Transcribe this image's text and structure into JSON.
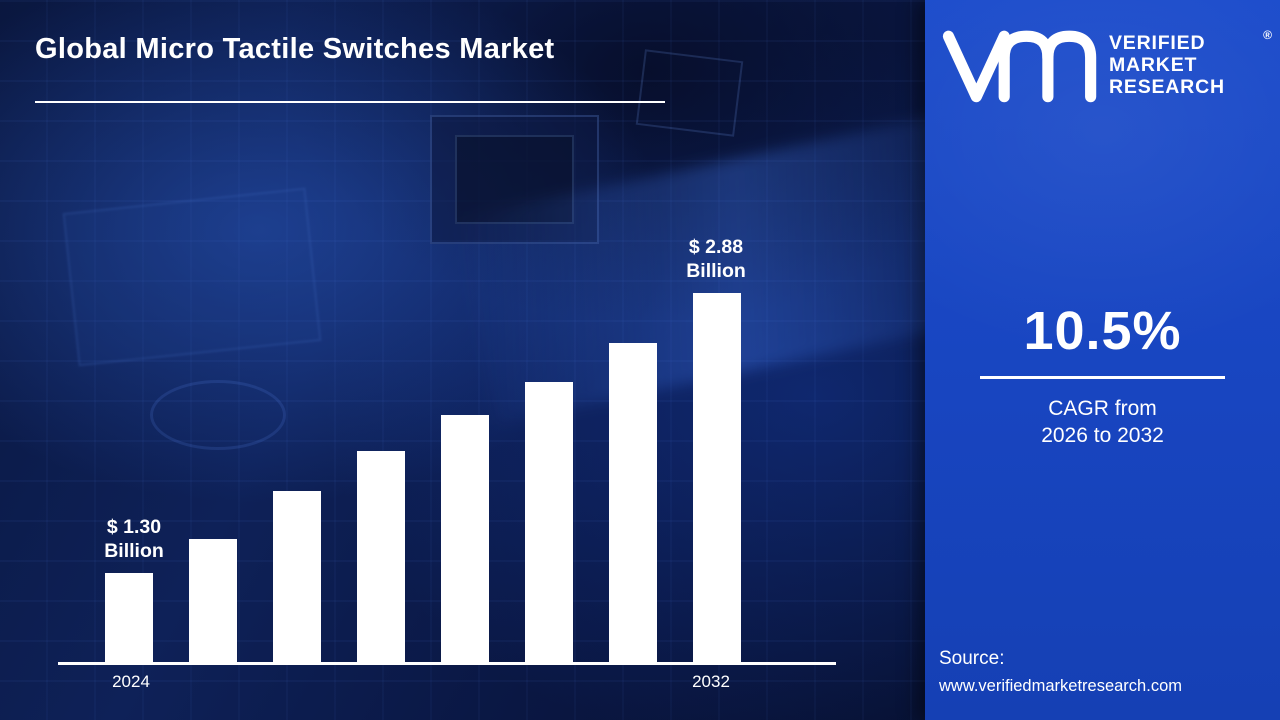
{
  "header": {
    "title": "Global Micro Tactile Switches Market"
  },
  "brand": {
    "monogram_icon": "vm-monogram",
    "name_lines": [
      "VERIFIED",
      "MARKET",
      "RESEARCH"
    ],
    "registered_mark": "®"
  },
  "stats": {
    "cagr_value": "10.5%",
    "caption_line1": "CAGR from",
    "caption_line2": "2026 to 2032"
  },
  "source": {
    "label": "Source:",
    "url": "www.verifiedmarketresearch.com"
  },
  "chart_data": {
    "type": "bar",
    "title": "Global Micro Tactile Switches Market",
    "unit": "USD Billion",
    "categories": [
      "2024",
      "",
      "",
      "",
      "",
      "",
      "",
      "2032"
    ],
    "values": [
      1.3,
      1.49,
      1.76,
      1.99,
      2.19,
      2.38,
      2.6,
      2.88
    ],
    "bar_color": "#ffffff",
    "axis_color": "#ffffff",
    "annotations": {
      "first_line1": "$ 1.30",
      "first_line2": "Billion",
      "last_line1": "$ 2.88",
      "last_line2": "Billion"
    },
    "x_tick_labels": {
      "first": "2024",
      "last": "2032"
    },
    "ylim": [
      1.0,
      3.0
    ],
    "grid": false,
    "legend": false,
    "baseline_truncated": true
  }
}
